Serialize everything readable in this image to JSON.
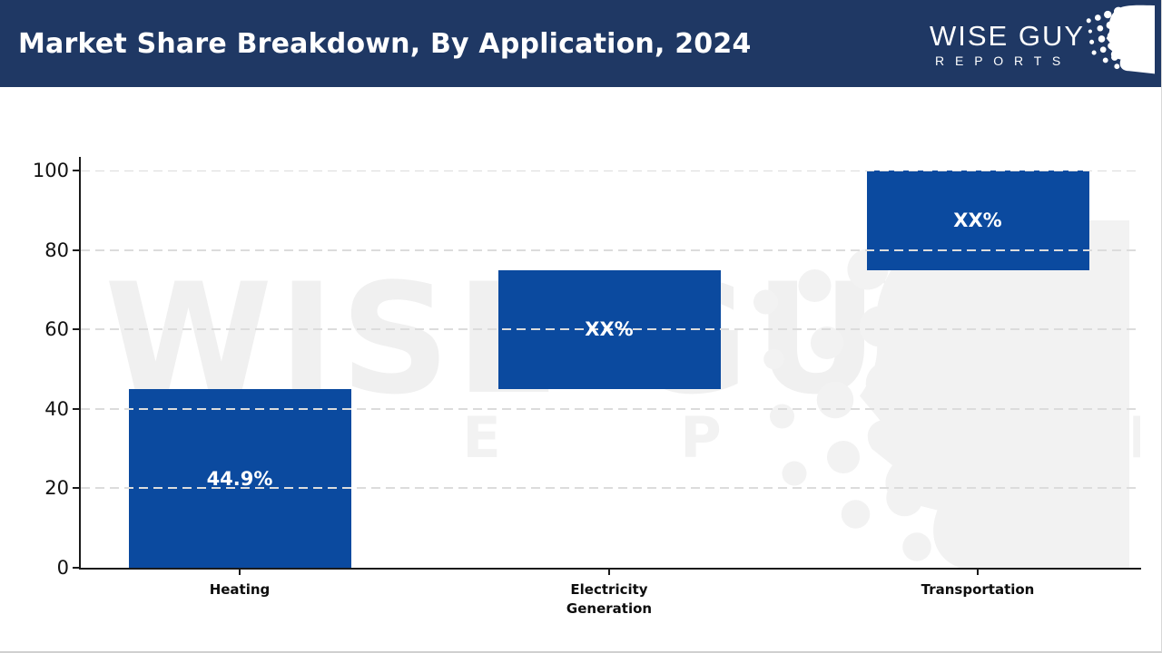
{
  "header": {
    "title": "Market Share Breakdown, By Application, 2024",
    "logo": {
      "line1": "WISE GUY",
      "line2": "R E P O R T S"
    }
  },
  "watermark": {
    "line1": "WISE GUY",
    "line2": "R E P O R T S"
  },
  "chart_data": {
    "type": "bar",
    "subtype": "floating-waterfall",
    "title": "Market Share Breakdown, By Application, 2024",
    "categories": [
      "Heating",
      "Electricity\nGeneration",
      "Transportation"
    ],
    "series": [
      {
        "name": "Market Share (%)",
        "segments": [
          {
            "start": 0,
            "end": 44.9,
            "label": "44.9%"
          },
          {
            "start": 45,
            "end": 75,
            "label": "XX%"
          },
          {
            "start": 75,
            "end": 100,
            "label": "XX%"
          }
        ]
      }
    ],
    "ylim": [
      0,
      100
    ],
    "yticks": [
      0,
      20,
      40,
      60,
      80,
      100
    ],
    "grid": "horizontal-dashed",
    "legend": "none",
    "bar_color": "#0B4A9F",
    "header_color": "#1F3864",
    "grid_color": "#DCDCDC"
  }
}
